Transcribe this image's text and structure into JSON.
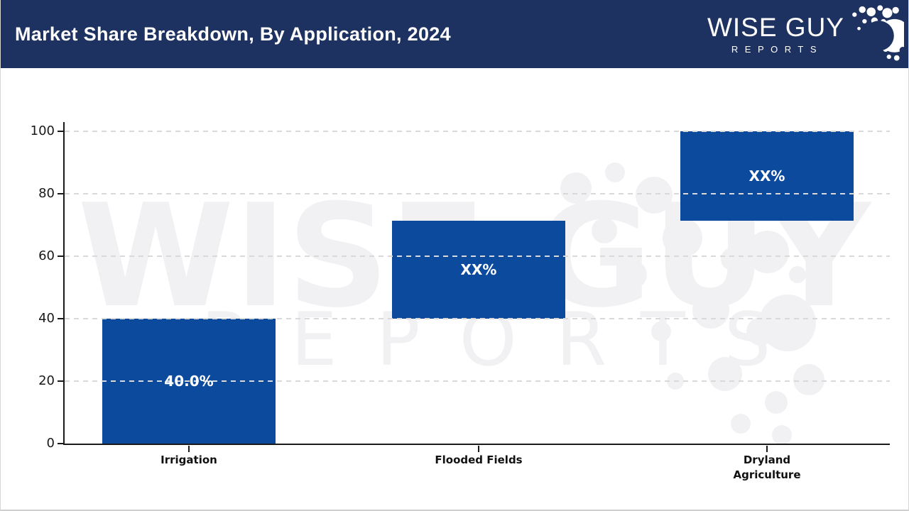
{
  "header": {
    "title": "Market Share Breakdown, By Application, 2024",
    "logo": {
      "line1": "WISE GUY",
      "line2": "REPORTS"
    }
  },
  "watermark": {
    "line1": "WISE GUY",
    "line2": "REPORTS"
  },
  "chart_data": {
    "type": "bar",
    "subtype": "waterfall",
    "title": "Market Share Breakdown, By Application, 2024",
    "categories": [
      "Irrigation",
      "Flooded Fields",
      "Dryland Agriculture"
    ],
    "bars": [
      {
        "category": "Irrigation",
        "lines": [
          "Irrigation"
        ],
        "start": 0,
        "end": 40,
        "value": 40,
        "label": "40.0%"
      },
      {
        "category": "Flooded Fields",
        "lines": [
          "Flooded Fields"
        ],
        "start": 40,
        "end": 71.4,
        "value": 31.4,
        "label": "XX%"
      },
      {
        "category": "Dryland Agriculture",
        "lines": [
          "Dryland",
          "Agriculture"
        ],
        "start": 71.4,
        "end": 100,
        "value": 28.6,
        "label": "XX%"
      }
    ],
    "yticks": [
      0,
      20,
      40,
      60,
      80,
      100
    ],
    "ylim": [
      0,
      100
    ],
    "xlabel": "",
    "ylabel": "",
    "grid": "horizontal-dashed-above-bars",
    "legend": "none",
    "bar_color": "#0c4a9e",
    "header_color": "#1e3261",
    "grid_color": "#d9d9d9",
    "axis_color": "#1a1a1a",
    "label_color": "#ffffff",
    "watermark_color": "#f1f1f4"
  }
}
